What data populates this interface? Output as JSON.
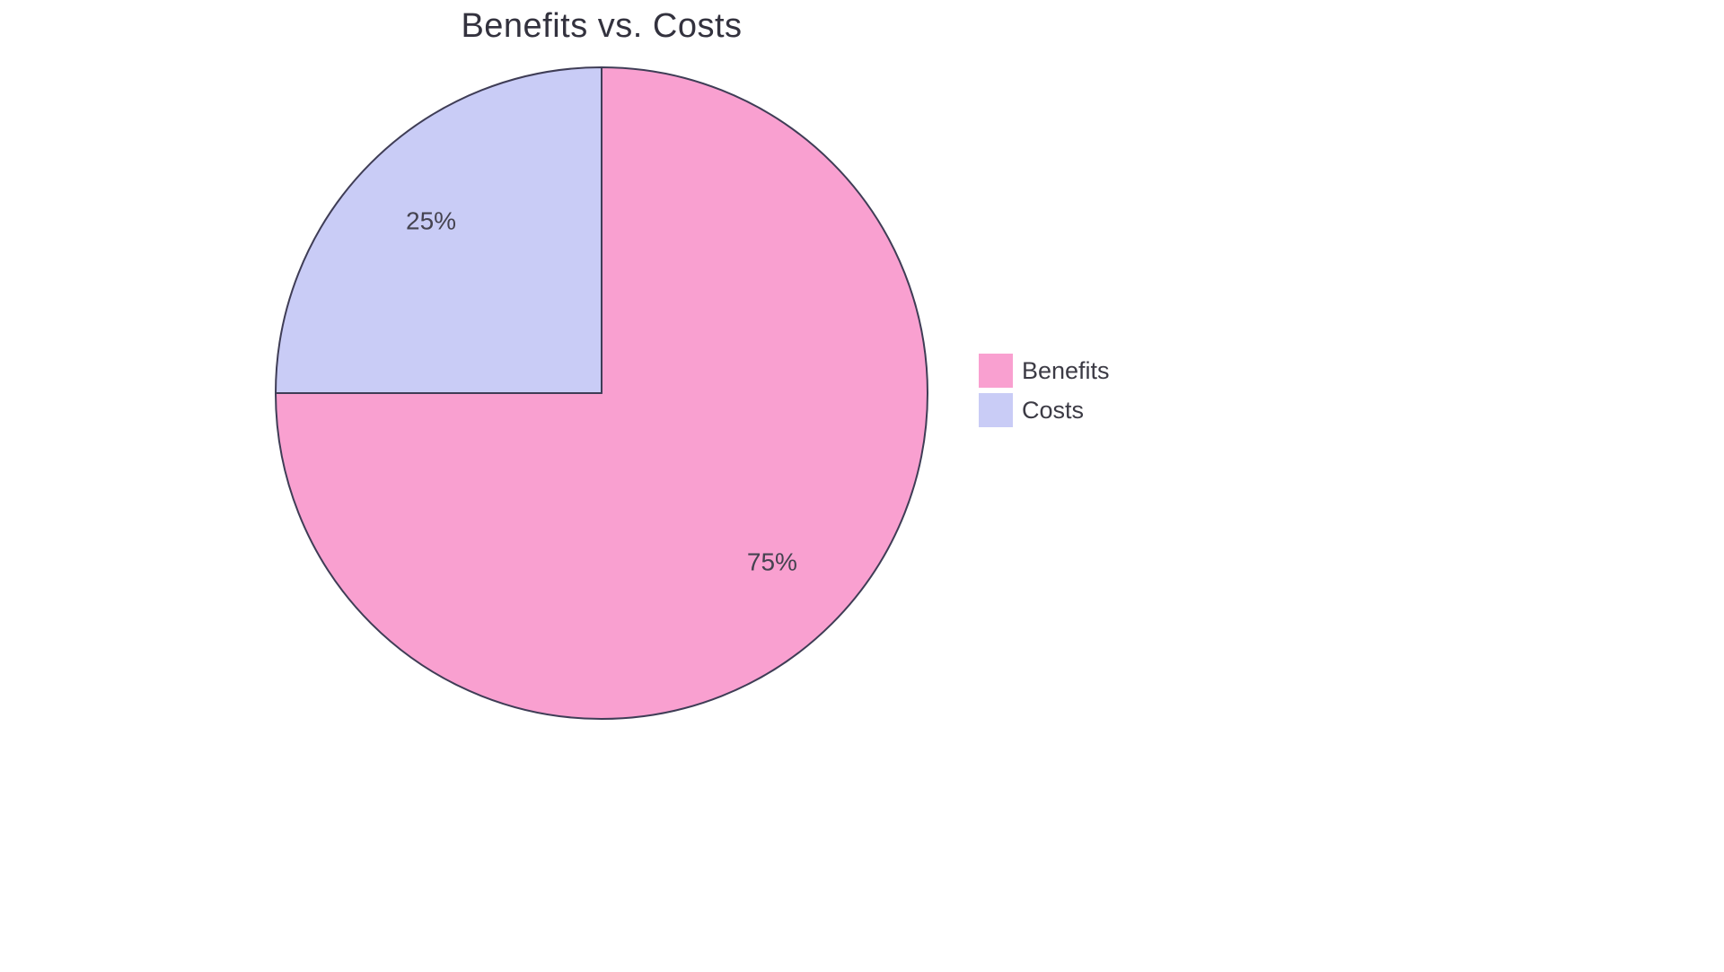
{
  "title": "Benefits vs. Costs",
  "chart_data": {
    "type": "pie",
    "title": "Benefits vs. Costs",
    "labels": [
      "Benefits",
      "Costs"
    ],
    "values": [
      75,
      25
    ],
    "slice_labels": [
      "75%",
      "25%"
    ],
    "colors": [
      "#F9A0D0",
      "#C9CCF6"
    ],
    "stroke_color": "#3F3D56",
    "stroke_width": 2,
    "start_angle_deg": -90,
    "direction": "clockwise",
    "legend_position": "right",
    "label_radius_ratio": 0.74
  },
  "legend": {
    "items": [
      {
        "label": "Benefits",
        "color": "#F9A0D0"
      },
      {
        "label": "Costs",
        "color": "#C9CCF6"
      }
    ]
  }
}
